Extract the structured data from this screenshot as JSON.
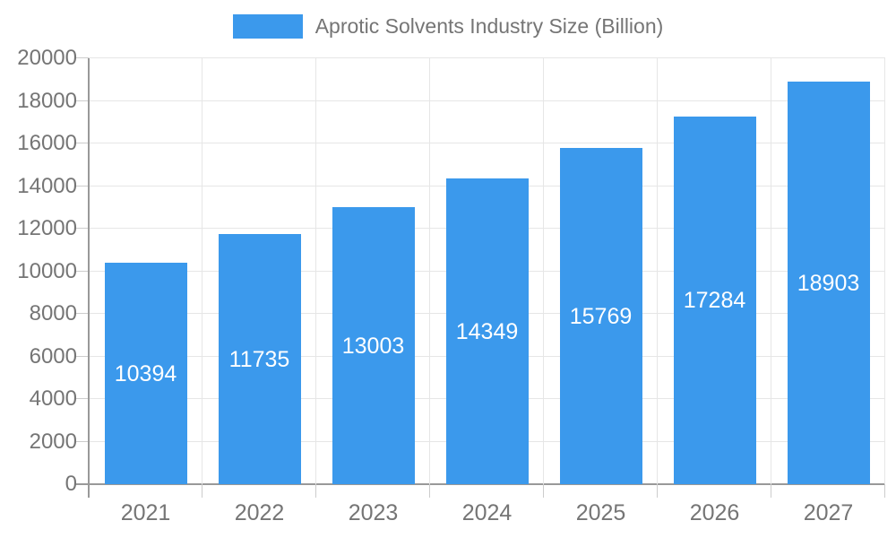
{
  "chart_data": {
    "type": "bar",
    "title": "Aprotic Solvents Industry Size (Billion)",
    "legend": {
      "label": "Aprotic Solvents Industry Size (Billion)",
      "position": "top"
    },
    "categories": [
      "2021",
      "2022",
      "2023",
      "2024",
      "2025",
      "2026",
      "2027"
    ],
    "series": [
      {
        "name": "Aprotic Solvents Industry Size (Billion)",
        "values": [
          10394,
          11735,
          13003,
          14349,
          15769,
          17284,
          18903
        ]
      }
    ],
    "value_labels_visible": true,
    "xlabel": "",
    "ylabel": "",
    "ylim": [
      0,
      20000
    ],
    "ytick_step": 2000,
    "ytick_labels": [
      "0",
      "2000",
      "4000",
      "6000",
      "8000",
      "10000",
      "12000",
      "14000",
      "16000",
      "18000",
      "20000"
    ],
    "grid": "on",
    "colors": {
      "bar": "#3B99EC",
      "axis_zero_line": "#999999",
      "gridline": "#e6e6e6",
      "tick_mark": "#cccccc",
      "axis_label_text": "#757575",
      "value_label_text": "#ffffff",
      "background": "#ffffff"
    }
  }
}
